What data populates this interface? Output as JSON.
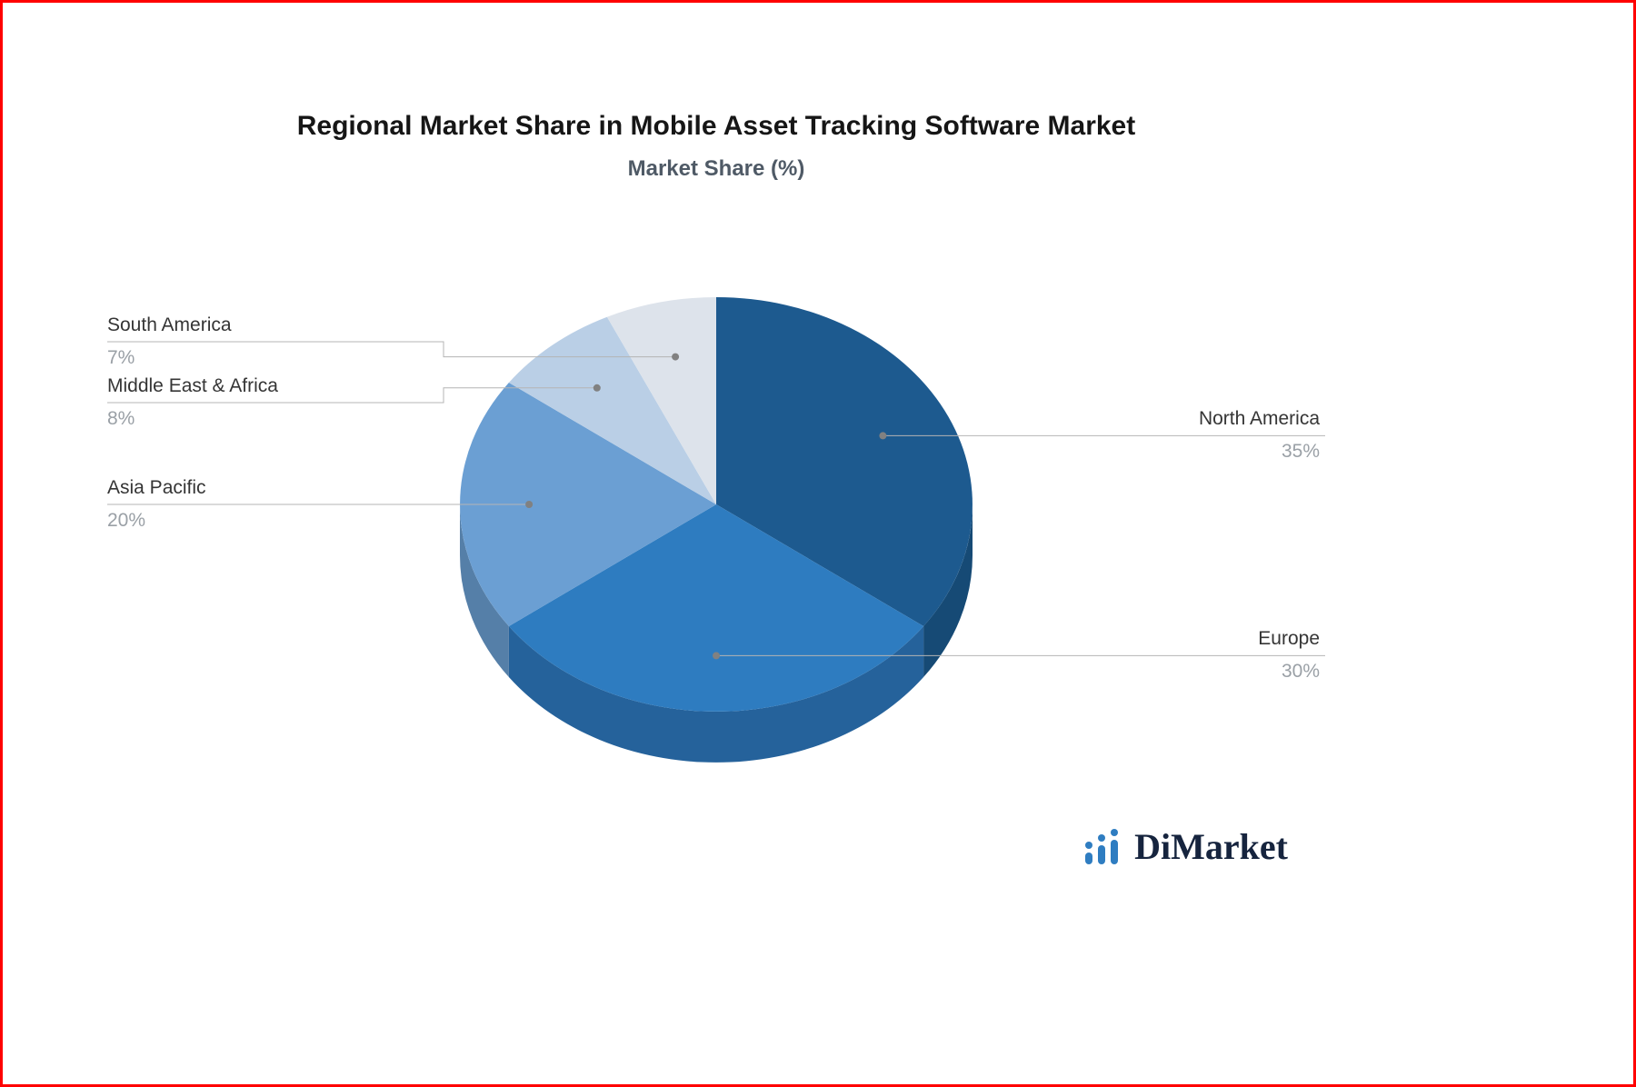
{
  "page": {
    "background": "#ffffff",
    "border_color": "#ff0000"
  },
  "chart_data": {
    "type": "pie",
    "style": "3d-pie",
    "title": "Regional Market Share in Mobile Asset Tracking Software Market",
    "subtitle": "Market Share (%)",
    "unit": "%",
    "legend_position": "none",
    "label_style": "callout-with-leader-lines",
    "slices": [
      {
        "label": "North America",
        "value": 35,
        "display": "35%",
        "color": "#1d5a8f",
        "side_color": "#164a75"
      },
      {
        "label": "Europe",
        "value": 30,
        "display": "30%",
        "color": "#2e7cc0",
        "side_color": "#25629b"
      },
      {
        "label": "Asia Pacific",
        "value": 20,
        "display": "20%",
        "color": "#6b9fd3",
        "side_color": "#557fa8"
      },
      {
        "label": "Middle East & Africa",
        "value": 8,
        "display": "8%",
        "color": "#bacfe6",
        "side_color": "#95a6ba"
      },
      {
        "label": "South America",
        "value": 7,
        "display": "7%",
        "color": "#dde3eb",
        "side_color": "#b1b6bd"
      }
    ]
  },
  "logo": {
    "text": "DiMarket",
    "icon": "bar-chart-icon",
    "text_color": "#16243e",
    "accent_color": "#2f7dc1"
  }
}
